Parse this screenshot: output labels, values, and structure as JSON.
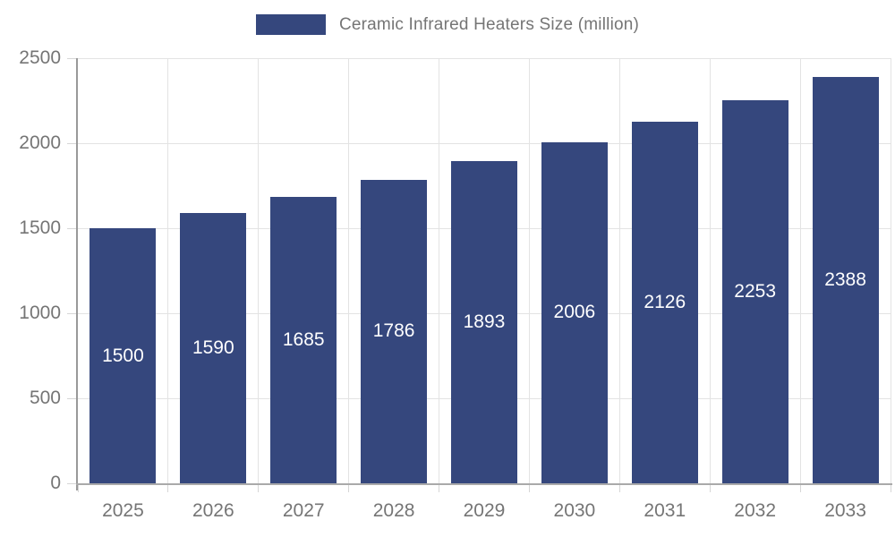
{
  "chart_data": {
    "type": "bar",
    "title": "Ceramic Infrared Heaters Size (million)",
    "categories": [
      "2025",
      "2026",
      "2027",
      "2028",
      "2029",
      "2030",
      "2031",
      "2032",
      "2033"
    ],
    "series": [
      {
        "name": "Ceramic Infrared Heaters Size (million)",
        "values": [
          1500,
          1590,
          1685,
          1786,
          1893,
          2006,
          2126,
          2253,
          2388
        ]
      }
    ],
    "xlabel": "",
    "ylabel": "",
    "ylim": [
      0,
      2500
    ],
    "ytick_step": 500,
    "grid": true,
    "legend_position": "top",
    "value_labels": "inside-center"
  },
  "legend": {
    "label": "Ceramic Infrared Heaters Size (million)"
  },
  "colors": {
    "bar": "#35477d",
    "axis_text": "#757575",
    "grid_line": "#e3e3e3",
    "axis_line": "#999999",
    "tick_line": "#d6d6d6",
    "value_label": "#ffffff",
    "background": "#ffffff"
  }
}
